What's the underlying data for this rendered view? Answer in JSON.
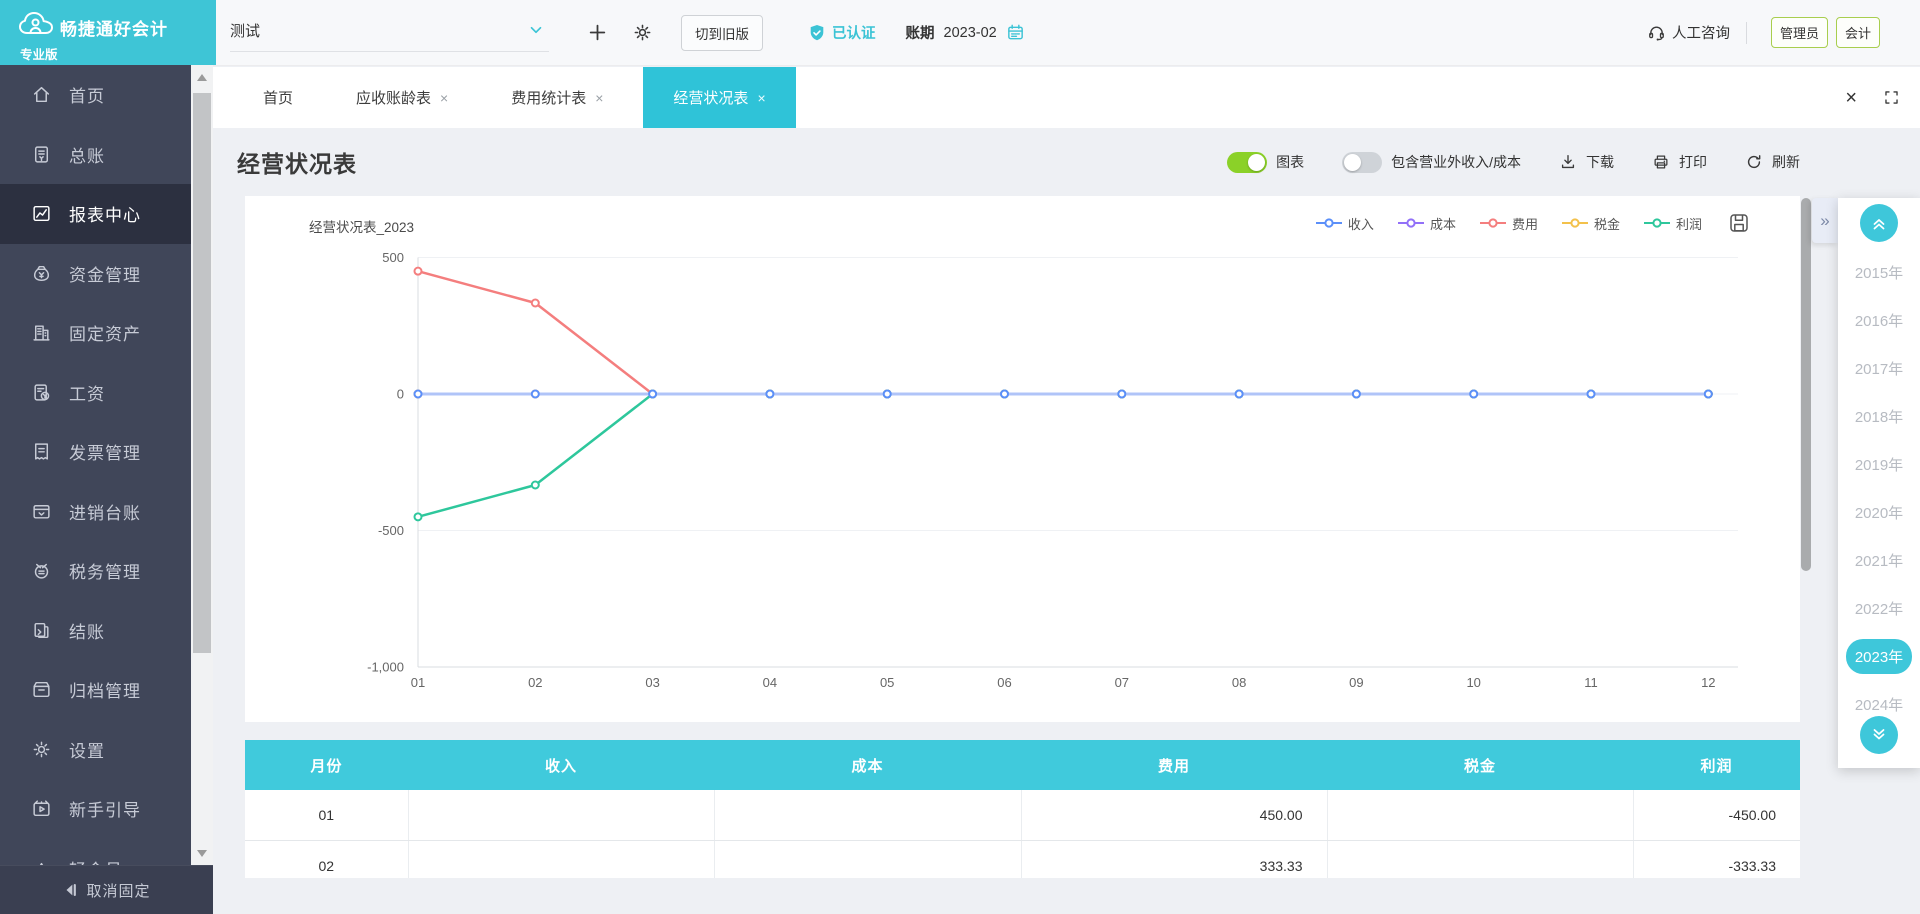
{
  "colors": {
    "accent": "#3ec5d6",
    "toggle_on": "#8bd128",
    "table_header": "#40cadc",
    "sidebar_bg": "#404659",
    "badge_border": "#a8ce4e"
  },
  "logo": {
    "title": "畅捷通好会计",
    "subtitle": "专业版"
  },
  "sidebar": {
    "items": [
      {
        "icon": "home-icon",
        "label": "首页",
        "active": false
      },
      {
        "icon": "ledger-icon",
        "label": "总账",
        "active": false
      },
      {
        "icon": "report-icon",
        "label": "报表中心",
        "active": true
      },
      {
        "icon": "moneybag-icon",
        "label": "资金管理",
        "active": false
      },
      {
        "icon": "building-icon",
        "label": "固定资产",
        "active": false
      },
      {
        "icon": "salary-icon",
        "label": "工资",
        "active": false
      },
      {
        "icon": "invoice-icon",
        "label": "发票管理",
        "active": false
      },
      {
        "icon": "inout-icon",
        "label": "进销台账",
        "active": false
      },
      {
        "icon": "tax-icon",
        "label": "税务管理",
        "active": false
      },
      {
        "icon": "closing-icon",
        "label": "结账",
        "active": false
      },
      {
        "icon": "archive-icon",
        "label": "归档管理",
        "active": false
      },
      {
        "icon": "gear-icon",
        "label": "设置",
        "active": false
      },
      {
        "icon": "guide-icon",
        "label": "新手引导",
        "active": false
      },
      {
        "icon": "crown-icon",
        "label": "轻会员",
        "active": false
      }
    ],
    "unpin_label": "取消固定"
  },
  "topbar": {
    "company": "测试",
    "switch_old_label": "切到旧版",
    "certified_label": "已认证",
    "period_label": "账期",
    "period_value": "2023-02",
    "support_label": "人工咨询",
    "roles": [
      "管理员",
      "会计"
    ]
  },
  "tabs": [
    {
      "label": "首页",
      "closable": false,
      "active": false
    },
    {
      "label": "应收账龄表",
      "closable": true,
      "active": false
    },
    {
      "label": "费用统计表",
      "closable": true,
      "active": false
    },
    {
      "label": "经营状况表",
      "closable": true,
      "active": true
    }
  ],
  "page": {
    "title": "经营状况表",
    "toggle_chart_label": "图表",
    "toggle_chart_on": true,
    "toggle_include_label": "包含营业外收入/成本",
    "toggle_include_on": false,
    "download_label": "下载",
    "print_label": "打印",
    "refresh_label": "刷新"
  },
  "chart_data": {
    "type": "line",
    "title": "经营状况表_2023",
    "x": [
      "01",
      "02",
      "03",
      "04",
      "05",
      "06",
      "07",
      "08",
      "09",
      "10",
      "11",
      "12"
    ],
    "yticks": [
      {
        "label": "500",
        "value": 500
      },
      {
        "label": "0",
        "value": 0
      },
      {
        "label": "-500",
        "value": -500
      },
      {
        "label": "-1,000",
        "value": -1000
      }
    ],
    "ylim": [
      -1000,
      500
    ],
    "grid": true,
    "legend_position": "top-right",
    "series": [
      {
        "name": "收入",
        "color": "#5b8ff9",
        "line_color": "#b0c4f8",
        "values": [
          0,
          0,
          0,
          0,
          0,
          0,
          0,
          0,
          0,
          0,
          0,
          0
        ]
      },
      {
        "name": "成本",
        "color": "#9270f8",
        "values": [
          0,
          0,
          0,
          0,
          0,
          0,
          0,
          0,
          0,
          0,
          0,
          0
        ]
      },
      {
        "name": "费用",
        "color": "#f47e7e",
        "values": [
          450,
          333.33,
          0,
          0,
          0,
          0,
          0,
          0,
          0,
          0,
          0,
          0
        ]
      },
      {
        "name": "税金",
        "color": "#f3c14b",
        "values": [
          0,
          0,
          0,
          0,
          0,
          0,
          0,
          0,
          0,
          0,
          0,
          0
        ]
      },
      {
        "name": "利润",
        "color": "#2ec79c",
        "values": [
          -450,
          -333.33,
          0,
          0,
          0,
          0,
          0,
          0,
          0,
          0,
          0,
          0
        ]
      }
    ]
  },
  "year_panel": {
    "years": [
      "2015年",
      "2016年",
      "2017年",
      "2018年",
      "2019年",
      "2020年",
      "2021年",
      "2022年",
      "2023年",
      "2024年"
    ],
    "selected": "2023年"
  },
  "table": {
    "columns": [
      "月份",
      "收入",
      "成本",
      "费用",
      "税金",
      "利润"
    ],
    "rows": [
      [
        "01",
        "",
        "",
        "450.00",
        "",
        "-450.00"
      ],
      [
        "02",
        "",
        "",
        "333.33",
        "",
        "-333.33"
      ]
    ]
  },
  "ui": {
    "close_glyph": "×",
    "collapse_glyph": "»"
  }
}
